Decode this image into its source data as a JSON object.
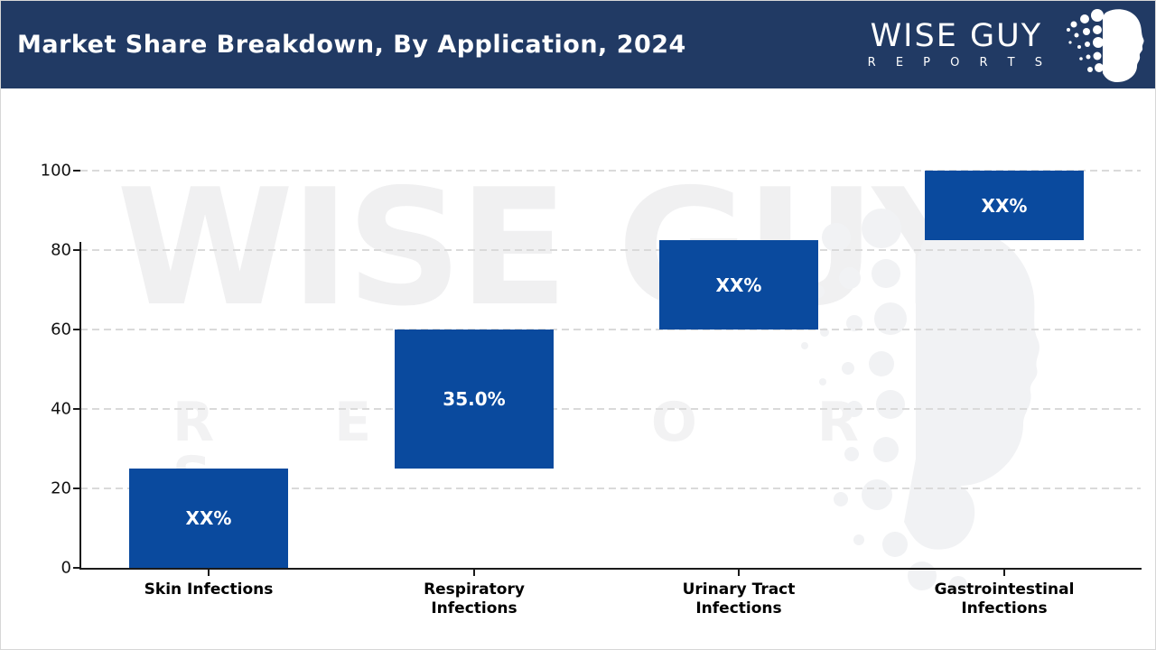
{
  "header": {
    "title": "Market Share Breakdown, By Application, 2024",
    "logo": {
      "line1": "WISE GUY",
      "line2": "R E P O R T S"
    }
  },
  "watermark": {
    "line1": "WISE GUY",
    "line2": "R E P O R T S"
  },
  "colors": {
    "header_bg": "#213a64",
    "bar": "#0a4a9e",
    "grid": "#dadada",
    "axis": "#1a1a1a",
    "watermark": "#f0f0f1"
  },
  "chart_data": {
    "type": "bar",
    "subtype": "floating-waterfall",
    "title": "Market Share Breakdown, By Application, 2024",
    "xlabel": "",
    "ylabel": "",
    "ylim": [
      0,
      105
    ],
    "yticks": [
      0,
      20,
      40,
      60,
      80,
      100
    ],
    "grid": "horizontal-dashed",
    "legend": "none",
    "categories": [
      "Skin Infections",
      "Respiratory\nInfections",
      "Urinary Tract\nInfections",
      "Gastrointestinal\nInfections"
    ],
    "series": [
      {
        "category": "Skin Infections",
        "start": 0,
        "end": 25,
        "value_label": "XX%"
      },
      {
        "category": "Respiratory Infections",
        "start": 25,
        "end": 60,
        "value_label": "35.0%"
      },
      {
        "category": "Urinary Tract Infections",
        "start": 60,
        "end": 82.5,
        "value_label": "XX%"
      },
      {
        "category": "Gastrointestinal Infections",
        "start": 82.5,
        "end": 100,
        "value_label": "XX%"
      }
    ]
  }
}
